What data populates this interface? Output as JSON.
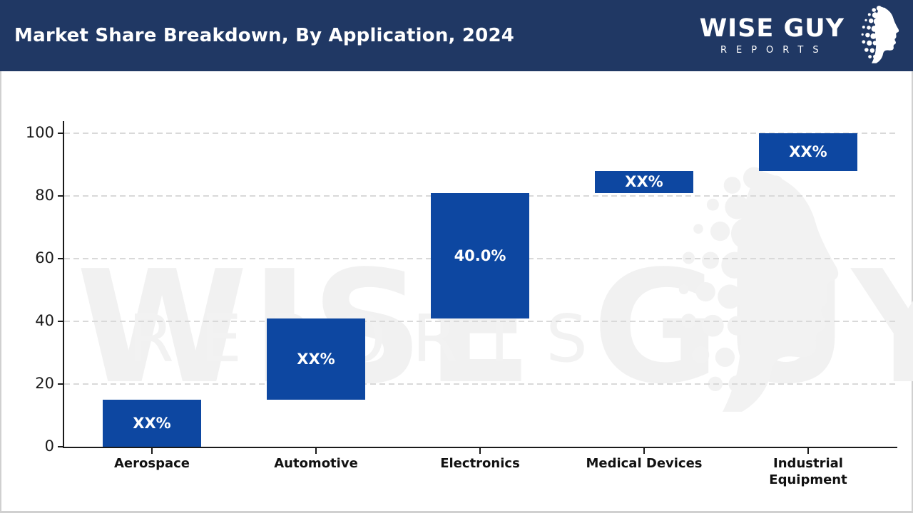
{
  "header": {
    "title": "Market Share Breakdown, By Application, 2024",
    "logo": {
      "name": "WISE GUY",
      "subtext": "REPORTS"
    }
  },
  "watermark": {
    "line1": "WISE GUY",
    "line2": "REPORTS"
  },
  "colors": {
    "header_bg": "#203864",
    "bar": "#0d47a1",
    "bar_label": "#ffffff",
    "grid": "#d9d9d9",
    "watermark": "#f1f1f1"
  },
  "chart_data": {
    "type": "bar",
    "subtype": "floating-waterfall",
    "title": "Market Share Breakdown, By Application, 2024",
    "categories": [
      "Aerospace",
      "Automotive",
      "Electronics",
      "Medical Devices",
      "Industrial Equipment"
    ],
    "bars": [
      {
        "category": "Aerospace",
        "start": 0,
        "end": 15,
        "label": "XX%"
      },
      {
        "category": "Automotive",
        "start": 15,
        "end": 41,
        "label": "XX%"
      },
      {
        "category": "Electronics",
        "start": 41,
        "end": 81,
        "label": "40.0%"
      },
      {
        "category": "Medical Devices",
        "start": 81,
        "end": 88,
        "label": "XX%"
      },
      {
        "category": "Industrial Equipment",
        "start": 88,
        "end": 100,
        "label": "XX%"
      }
    ],
    "xlabel": "",
    "ylabel": "",
    "yticks": [
      0,
      20,
      40,
      60,
      80,
      100
    ],
    "ylim": [
      0,
      100
    ],
    "grid": "horizontal-dashed",
    "legend": "none",
    "bar_color": "#0d47a1",
    "label_color": "#ffffff"
  }
}
